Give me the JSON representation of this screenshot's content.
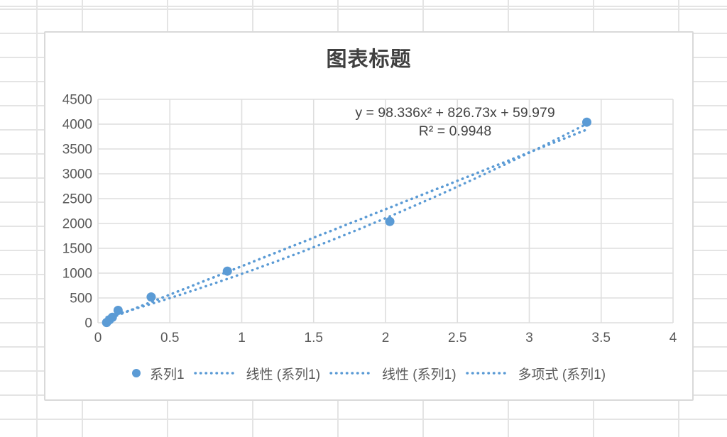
{
  "sheet": {
    "grid_color": "#E4E4E4",
    "background": "#FFFFFF"
  },
  "chart": {
    "title": "图表标题",
    "annotation": {
      "line1": "y = 98.336x² + 826.73x + 59.979",
      "line2": "R² = 0.9948"
    },
    "legend": {
      "items": [
        {
          "label": "系列1",
          "marker": "dot"
        },
        {
          "label": "线性 (系列1)",
          "marker": "dotted-line"
        },
        {
          "label": "线性 (系列1)",
          "marker": "dotted-line"
        },
        {
          "label": "多项式 (系列1)",
          "marker": "dotted-line"
        }
      ]
    },
    "colors": {
      "accent_blue": "#5B9BD5",
      "chart_gridline": "#DEDEDE",
      "axis_text": "#595959",
      "title_text": "#404040",
      "equation_text": "#444444",
      "chart_border": "#D9D9D9",
      "sheet_gridline": "#E4E4E4"
    }
  },
  "chart_data": {
    "type": "scatter",
    "title": "图表标题",
    "xlabel": "",
    "ylabel": "",
    "xlim": [
      0,
      4
    ],
    "ylim": [
      0,
      4500
    ],
    "x_ticks": [
      0,
      0.5,
      1,
      1.5,
      2,
      2.5,
      3,
      3.5,
      4
    ],
    "y_ticks": [
      0,
      500,
      1000,
      1500,
      2000,
      2500,
      3000,
      3500,
      4000,
      4500
    ],
    "grid": true,
    "legend_position": "bottom",
    "series": [
      {
        "name": "系列1",
        "marker": "circle",
        "color": "#5B9BD5",
        "points": [
          [
            0.06,
            5
          ],
          [
            0.08,
            60
          ],
          [
            0.1,
            110
          ],
          [
            0.14,
            250
          ],
          [
            0.37,
            520
          ],
          [
            0.9,
            1040
          ],
          [
            2.03,
            2040
          ],
          [
            3.4,
            4040
          ]
        ]
      }
    ],
    "trendlines": [
      {
        "name": "线性 (系列1)",
        "type": "linear",
        "slope": 1146,
        "intercept": -6,
        "x_range": [
          0.06,
          3.4
        ],
        "style": "dotted",
        "color": "#5B9BD5"
      },
      {
        "name": "线性 (系列1)",
        "type": "linear",
        "slope": 1146,
        "intercept": -6,
        "x_range": [
          0.06,
          3.4
        ],
        "style": "dotted",
        "color": "#5B9BD5"
      },
      {
        "name": "多项式 (系列1)",
        "type": "polynomial",
        "coefficients": [
          98.336,
          826.73,
          59.979
        ],
        "equation": "y = 98.336x² + 826.73x + 59.979",
        "r_squared": 0.9948,
        "x_range": [
          0.06,
          3.4
        ],
        "style": "dotted",
        "color": "#5B9BD5"
      }
    ],
    "annotation": "y = 98.336x² + 826.73x + 59.979\nR² = 0.9948"
  }
}
